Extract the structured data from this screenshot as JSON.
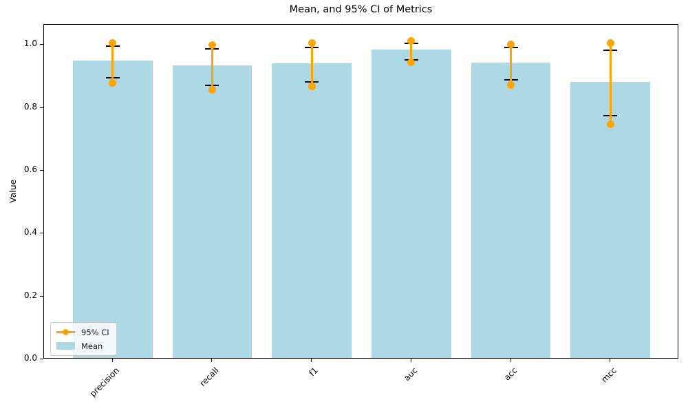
{
  "chart_data": {
    "type": "bar",
    "title": "Mean, and 95% CI of Metrics",
    "xlabel": "",
    "ylabel": "Value",
    "categories": [
      "precision",
      "recall",
      "f1",
      "auc",
      "acc",
      "mcc"
    ],
    "series": [
      {
        "name": "Mean",
        "type": "bar",
        "color": "#ADD8E6",
        "values": [
          0.945,
          0.93,
          0.937,
          0.98,
          0.939,
          0.877
        ]
      },
      {
        "name": "95% CI",
        "type": "errorbar",
        "color": "#FFA500",
        "cap_color": "#000000",
        "low": [
          0.88,
          0.858,
          0.869,
          0.945,
          0.872,
          0.748
        ],
        "high": [
          1.007,
          1.0,
          1.006,
          1.013,
          1.002,
          1.007
        ],
        "cap_low": [
          0.895,
          0.871,
          0.883,
          0.953,
          0.888,
          0.776
        ],
        "cap_high": [
          0.997,
          0.987,
          0.991,
          1.004,
          0.991,
          0.982
        ]
      }
    ],
    "ylim": [
      0,
      1.064
    ],
    "xlim": [
      -0.69,
      5.69
    ],
    "bar_width": 0.8,
    "yticks": [
      "0.0",
      "0.2",
      "0.4",
      "0.6",
      "0.8",
      "1.0"
    ],
    "xtick_rotation": 45,
    "grid": false,
    "legend": {
      "position": "lower left",
      "entries": [
        {
          "label": "95% CI",
          "marker": "line-dot",
          "color": "#FFA500"
        },
        {
          "label": "Mean",
          "marker": "patch",
          "color": "#ADD8E6"
        }
      ]
    }
  }
}
